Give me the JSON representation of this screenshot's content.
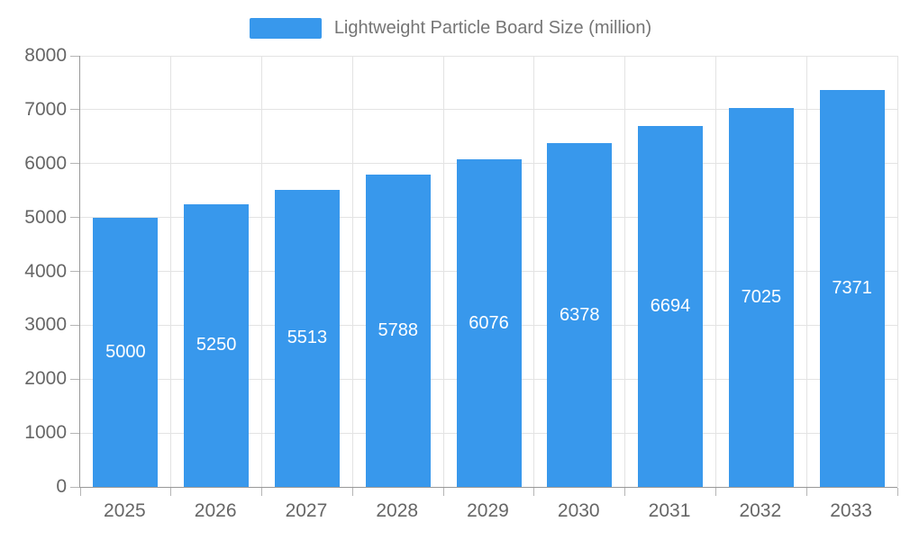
{
  "legend": {
    "label": "Lightweight Particle Board Size (million)"
  },
  "chart_data": {
    "type": "bar",
    "title": "",
    "xlabel": "",
    "ylabel": "",
    "categories": [
      "2025",
      "2026",
      "2027",
      "2028",
      "2029",
      "2030",
      "2031",
      "2032",
      "2033"
    ],
    "series": [
      {
        "name": "Lightweight Particle Board Size (million)",
        "values": [
          5000,
          5250,
          5513,
          5788,
          6076,
          6378,
          6694,
          7025,
          7371
        ]
      }
    ],
    "ylim": [
      0,
      8000
    ],
    "y_ticks": [
      0,
      1000,
      2000,
      3000,
      4000,
      5000,
      6000,
      7000,
      8000
    ],
    "grid": true,
    "legend_position": "top-center",
    "bar_label_position": "inside-center"
  },
  "colors": {
    "bar": "#3898ec",
    "bar_label": "#ffffff",
    "grid": "#e3e3e3",
    "axis_line": "#999999",
    "axis_label": "#666666",
    "legend_text": "#757575",
    "background": "#ffffff"
  }
}
